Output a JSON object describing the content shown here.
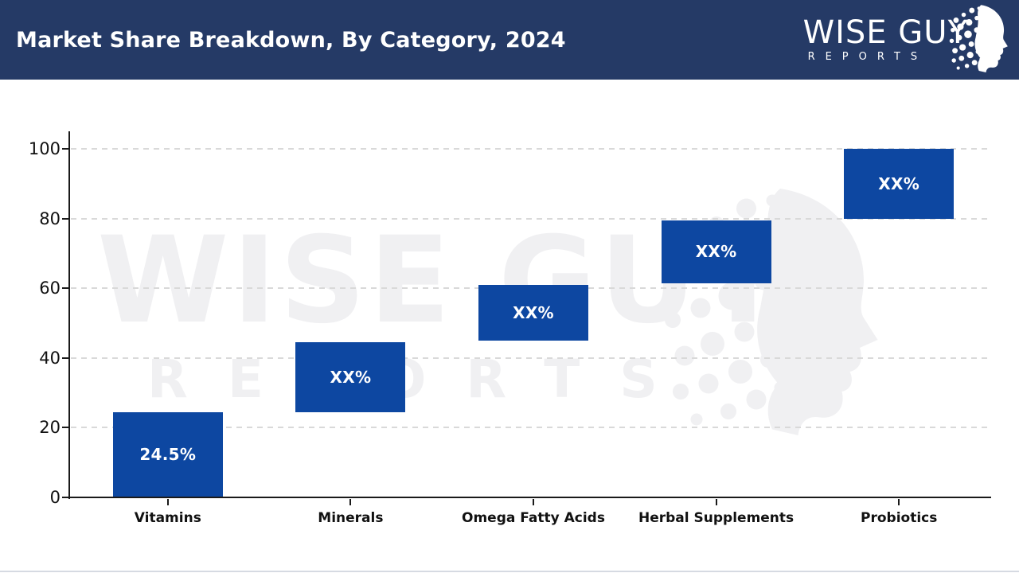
{
  "header": {
    "title": "Market Share Breakdown, By Category, 2024",
    "logo": {
      "primary": "WISE GUY",
      "secondary": "REPORTS",
      "face_icon": "dotted-face-profile-icon"
    }
  },
  "watermark": {
    "primary": "WISE GUY",
    "secondary": "REPORTS"
  },
  "chart_data": {
    "type": "bar",
    "subtype": "waterfall",
    "title": "Market Share Breakdown, By Category, 2024",
    "categories": [
      "Vitamins",
      "Minerals",
      "Omega Fatty Acids",
      "Herbal Supplements",
      "Probiotics"
    ],
    "segments": [
      {
        "category": "Vitamins",
        "start": 0,
        "end": 24.5,
        "value": 24.5,
        "label": "24.5%"
      },
      {
        "category": "Minerals",
        "start": 24.5,
        "end": 44.5,
        "value": 20,
        "label": "XX%"
      },
      {
        "category": "Omega Fatty Acids",
        "start": 45,
        "end": 61,
        "value": 16,
        "label": "XX%"
      },
      {
        "category": "Herbal Supplements",
        "start": 61.5,
        "end": 79.5,
        "value": 18,
        "label": "XX%"
      },
      {
        "category": "Probiotics",
        "start": 80,
        "end": 100,
        "value": 20,
        "label": "XX%"
      }
    ],
    "xlabel": "",
    "ylabel": "",
    "ylim": [
      0,
      100
    ],
    "yticks": [
      0,
      20,
      40,
      60,
      80,
      100
    ],
    "grid": "horizontal-dashed",
    "legend": "none",
    "bar_color": "#0d47a1",
    "bar_label_color": "#ffffff"
  },
  "colors": {
    "header_bg": "#253a66",
    "header_text": "#ffffff",
    "bar": "#0d47a1",
    "grid": "#d9d9d9",
    "axis": "#1a1a1a",
    "tick_text": "#111111",
    "watermark": "#f0f0f2"
  }
}
